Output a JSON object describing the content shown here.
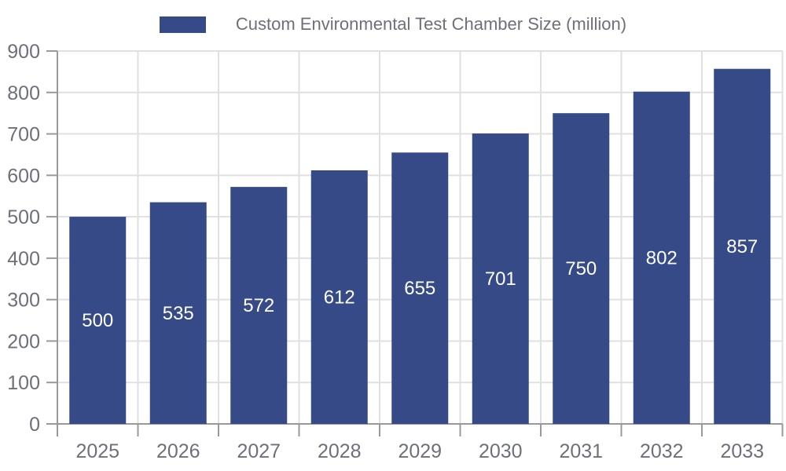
{
  "chart_data": {
    "type": "bar",
    "title": "Custom Environmental Test Chamber Size (million)",
    "categories": [
      "2025",
      "2026",
      "2027",
      "2028",
      "2029",
      "2030",
      "2031",
      "2032",
      "2033"
    ],
    "values": [
      500,
      535,
      572,
      612,
      655,
      701,
      750,
      802,
      857
    ],
    "xlabel": "",
    "ylabel": "",
    "ylim": [
      0,
      900
    ],
    "ytick_step": 100,
    "ytick_labels": [
      "0",
      "100",
      "200",
      "300",
      "400",
      "500",
      "600",
      "700",
      "800",
      "900"
    ],
    "grid": true,
    "legend_position": "top",
    "value_labels_inside_bars": true,
    "colors": {
      "bar": "#364a87",
      "bar_value_label": "#ffffff",
      "grid_line": "#e0e0e0",
      "axis_line": "#999999",
      "tick_label": "#6e7079",
      "legend_text": "#6e7079",
      "background": "#ffffff"
    }
  }
}
